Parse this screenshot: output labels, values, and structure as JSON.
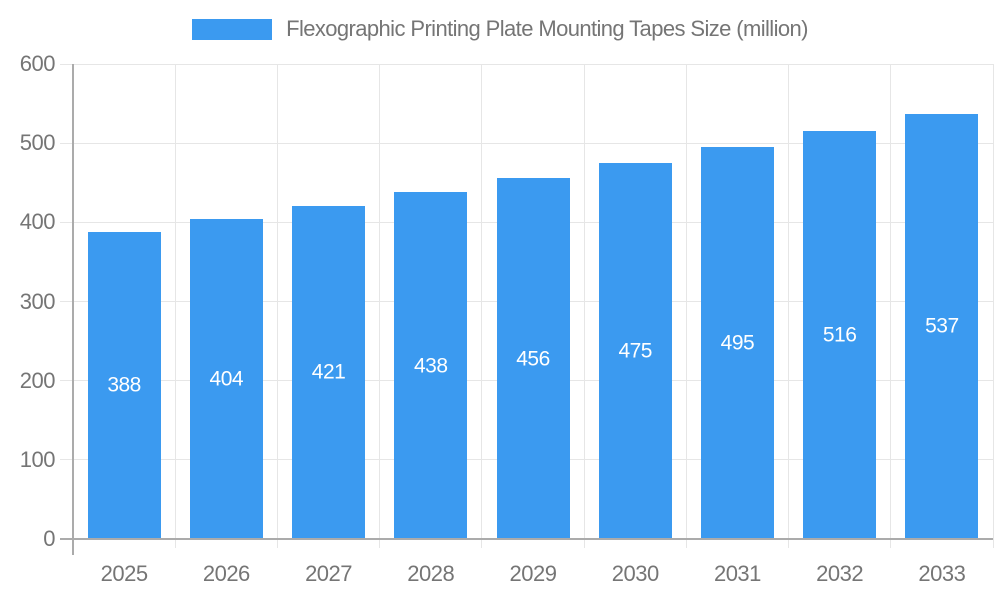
{
  "legend": {
    "label": "Flexographic Printing Plate Mounting Tapes Size (million)"
  },
  "chart_data": {
    "type": "bar",
    "title": "Flexographic Printing Plate Mounting Tapes Size (million)",
    "categories": [
      "2025",
      "2026",
      "2027",
      "2028",
      "2029",
      "2030",
      "2031",
      "2032",
      "2033"
    ],
    "values": [
      388,
      404,
      421,
      438,
      456,
      475,
      495,
      516,
      537
    ],
    "value_labels": [
      "388",
      "404",
      "421",
      "438",
      "456",
      "475",
      "495",
      "516",
      "537"
    ],
    "xlabel": "",
    "ylabel": "",
    "ylim": [
      0,
      600
    ],
    "ytick_interval": 100,
    "ytick_labels": [
      "0",
      "100",
      "200",
      "300",
      "400",
      "500",
      "600"
    ],
    "grid": true,
    "legend_position": "top-center",
    "colors": {
      "bar": "#3B9AF0",
      "grid": "#E6E6E6",
      "axis": "#ABABAB",
      "tick_text": "#757575",
      "title_text": "#757575",
      "value_text": "#FFFFFF",
      "background": "#FFFFFF"
    }
  }
}
